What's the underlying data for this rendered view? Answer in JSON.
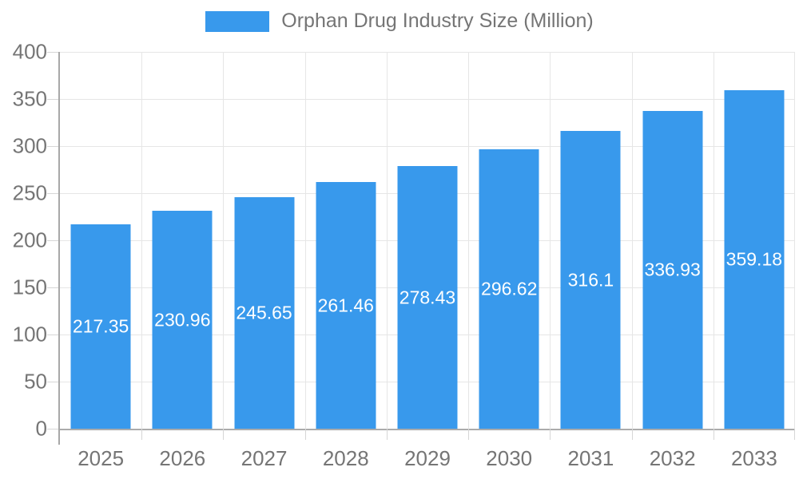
{
  "legend": {
    "label": "Orphan Drug Industry Size (Million)"
  },
  "colors": {
    "bar": "#3899EC",
    "grid": "#E6E6E6",
    "axis_line": "#ABABAB",
    "tick_text": "#757575",
    "bar_label_text": "#FFFFFF",
    "background": "#FFFFFF"
  },
  "chart_data": {
    "type": "bar",
    "title": "Orphan Drug Industry Size (Million)",
    "categories": [
      "2025",
      "2026",
      "2027",
      "2028",
      "2029",
      "2030",
      "2031",
      "2032",
      "2033"
    ],
    "series": [
      {
        "name": "Orphan Drug Industry Size (Million)",
        "values": [
          217.35,
          230.96,
          245.65,
          261.46,
          278.43,
          296.62,
          316.1,
          336.93,
          359.18
        ]
      }
    ],
    "value_labels": [
      "217.35",
      "230.96",
      "245.65",
      "261.46",
      "278.43",
      "296.62",
      "316.1",
      "336.93",
      "359.18"
    ],
    "xlabel": "",
    "ylabel": "",
    "ylim": [
      0,
      400
    ],
    "ytick_step": 50,
    "ytick_labels": [
      "0",
      "50",
      "100",
      "150",
      "200",
      "250",
      "300",
      "350",
      "400"
    ],
    "grid": true,
    "legend_position": "top-center",
    "value_label_placement": "inside-center"
  }
}
